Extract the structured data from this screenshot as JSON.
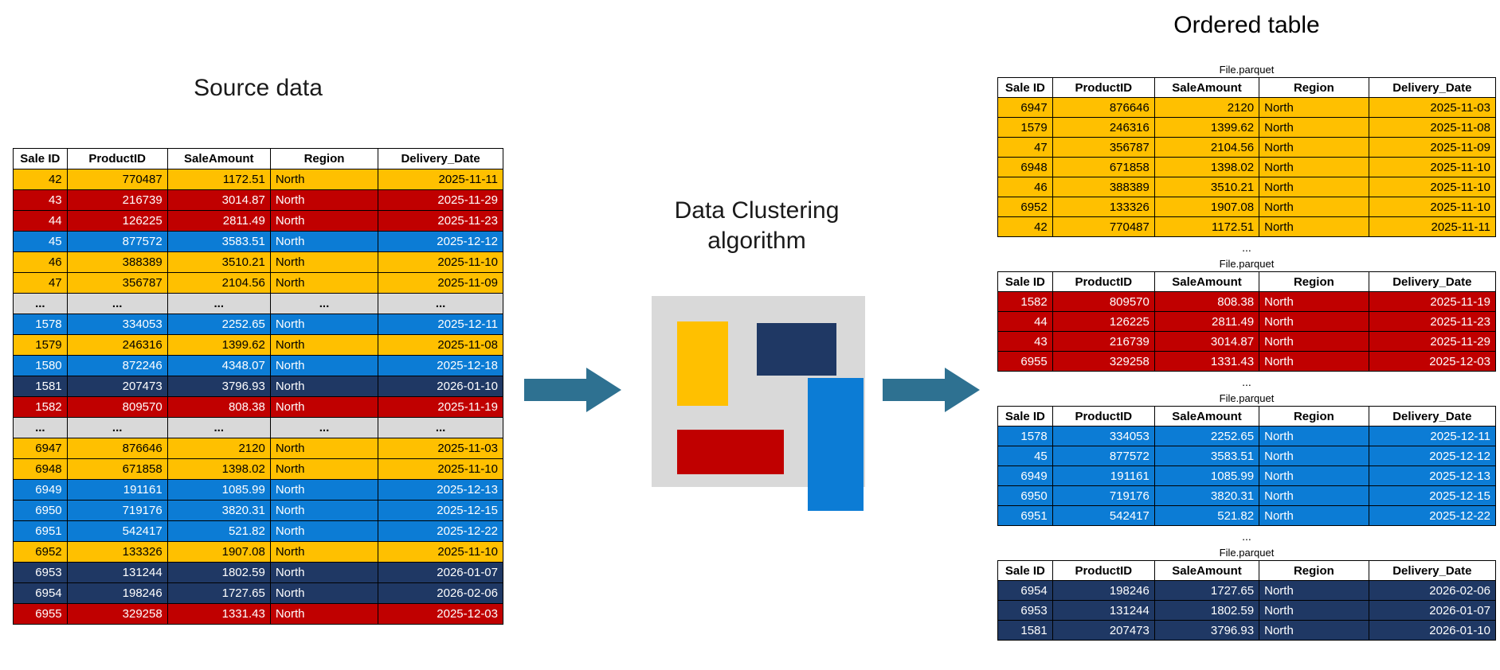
{
  "titles": {
    "source": "Source data",
    "algorithm": "Data Clustering algorithm",
    "ordered": "Ordered table"
  },
  "ellipsis": "...",
  "arrow_color": "#2E7191",
  "cluster_colors": {
    "yellow": {
      "bg": "#FFC000",
      "text": "#000000"
    },
    "red": {
      "bg": "#C00000",
      "text": "#FFFFFF"
    },
    "blue": {
      "bg": "#0C7CD5",
      "text": "#FFFFFF"
    },
    "navy": {
      "bg": "#1F3864",
      "text": "#FFFFFF"
    },
    "gray": {
      "bg": "#D9D9D9",
      "text": "#000000"
    }
  },
  "source_table": {
    "headers": [
      "Sale ID",
      "ProductID",
      "SaleAmount",
      "Region",
      "Delivery_Date"
    ],
    "rows": [
      {
        "cluster": "yellow",
        "cells": [
          "42",
          "770487",
          "1172.51",
          "North",
          "2025-11-11"
        ]
      },
      {
        "cluster": "red",
        "cells": [
          "43",
          "216739",
          "3014.87",
          "North",
          "2025-11-29"
        ]
      },
      {
        "cluster": "red",
        "cells": [
          "44",
          "126225",
          "2811.49",
          "North",
          "2025-11-23"
        ]
      },
      {
        "cluster": "blue",
        "cells": [
          "45",
          "877572",
          "3583.51",
          "North",
          "2025-12-12"
        ]
      },
      {
        "cluster": "yellow",
        "cells": [
          "46",
          "388389",
          "3510.21",
          "North",
          "2025-11-10"
        ]
      },
      {
        "cluster": "yellow",
        "cells": [
          "47",
          "356787",
          "2104.56",
          "North",
          "2025-11-09"
        ]
      },
      {
        "cluster": "gray",
        "cells": [
          "...",
          "...",
          "...",
          "...",
          "..."
        ]
      },
      {
        "cluster": "blue",
        "cells": [
          "1578",
          "334053",
          "2252.65",
          "North",
          "2025-12-11"
        ]
      },
      {
        "cluster": "yellow",
        "cells": [
          "1579",
          "246316",
          "1399.62",
          "North",
          "2025-11-08"
        ]
      },
      {
        "cluster": "blue",
        "cells": [
          "1580",
          "872246",
          "4348.07",
          "North",
          "2025-12-18"
        ]
      },
      {
        "cluster": "navy",
        "cells": [
          "1581",
          "207473",
          "3796.93",
          "North",
          "2026-01-10"
        ]
      },
      {
        "cluster": "red",
        "cells": [
          "1582",
          "809570",
          "808.38",
          "North",
          "2025-11-19"
        ]
      },
      {
        "cluster": "gray",
        "cells": [
          "...",
          "...",
          "...",
          "...",
          "..."
        ]
      },
      {
        "cluster": "yellow",
        "cells": [
          "6947",
          "876646",
          "2120",
          "North",
          "2025-11-03"
        ]
      },
      {
        "cluster": "yellow",
        "cells": [
          "6948",
          "671858",
          "1398.02",
          "North",
          "2025-11-10"
        ]
      },
      {
        "cluster": "blue",
        "cells": [
          "6949",
          "191161",
          "1085.99",
          "North",
          "2025-12-13"
        ]
      },
      {
        "cluster": "blue",
        "cells": [
          "6950",
          "719176",
          "3820.31",
          "North",
          "2025-12-15"
        ]
      },
      {
        "cluster": "blue",
        "cells": [
          "6951",
          "542417",
          "521.82",
          "North",
          "2025-12-22"
        ]
      },
      {
        "cluster": "yellow",
        "cells": [
          "6952",
          "133326",
          "1907.08",
          "North",
          "2025-11-10"
        ]
      },
      {
        "cluster": "navy",
        "cells": [
          "6953",
          "131244",
          "1802.59",
          "North",
          "2026-01-07"
        ]
      },
      {
        "cluster": "navy",
        "cells": [
          "6954",
          "198246",
          "1727.65",
          "North",
          "2026-02-06"
        ]
      },
      {
        "cluster": "red",
        "cells": [
          "6955",
          "329258",
          "1331.43",
          "North",
          "2025-12-03"
        ]
      }
    ]
  },
  "ordered_tables": [
    {
      "file_label": "File.parquet",
      "cluster": "yellow",
      "headers": [
        "Sale ID",
        "ProductID",
        "SaleAmount",
        "Region",
        "Delivery_Date"
      ],
      "rows": [
        [
          "6947",
          "876646",
          "2120",
          "North",
          "2025-11-03"
        ],
        [
          "1579",
          "246316",
          "1399.62",
          "North",
          "2025-11-08"
        ],
        [
          "47",
          "356787",
          "2104.56",
          "North",
          "2025-11-09"
        ],
        [
          "6948",
          "671858",
          "1398.02",
          "North",
          "2025-11-10"
        ],
        [
          "46",
          "388389",
          "3510.21",
          "North",
          "2025-11-10"
        ],
        [
          "6952",
          "133326",
          "1907.08",
          "North",
          "2025-11-10"
        ],
        [
          "42",
          "770487",
          "1172.51",
          "North",
          "2025-11-11"
        ]
      ]
    },
    {
      "file_label": "File.parquet",
      "cluster": "red",
      "headers": [
        "Sale ID",
        "ProductID",
        "SaleAmount",
        "Region",
        "Delivery_Date"
      ],
      "rows": [
        [
          "1582",
          "809570",
          "808.38",
          "North",
          "2025-11-19"
        ],
        [
          "44",
          "126225",
          "2811.49",
          "North",
          "2025-11-23"
        ],
        [
          "43",
          "216739",
          "3014.87",
          "North",
          "2025-11-29"
        ],
        [
          "6955",
          "329258",
          "1331.43",
          "North",
          "2025-12-03"
        ]
      ]
    },
    {
      "file_label": "File.parquet",
      "cluster": "blue",
      "headers": [
        "Sale ID",
        "ProductID",
        "SaleAmount",
        "Region",
        "Delivery_Date"
      ],
      "rows": [
        [
          "1578",
          "334053",
          "2252.65",
          "North",
          "2025-12-11"
        ],
        [
          "45",
          "877572",
          "3583.51",
          "North",
          "2025-12-12"
        ],
        [
          "6949",
          "191161",
          "1085.99",
          "North",
          "2025-12-13"
        ],
        [
          "6950",
          "719176",
          "3820.31",
          "North",
          "2025-12-15"
        ],
        [
          "6951",
          "542417",
          "521.82",
          "North",
          "2025-12-22"
        ]
      ]
    },
    {
      "file_label": "File.parquet",
      "cluster": "navy",
      "headers": [
        "Sale ID",
        "ProductID",
        "SaleAmount",
        "Region",
        "Delivery_Date"
      ],
      "rows": [
        [
          "6954",
          "198246",
          "1727.65",
          "North",
          "2026-02-06"
        ],
        [
          "6953",
          "131244",
          "1802.59",
          "North",
          "2026-01-07"
        ],
        [
          "1581",
          "207473",
          "3796.93",
          "North",
          "2026-01-10"
        ]
      ]
    }
  ]
}
